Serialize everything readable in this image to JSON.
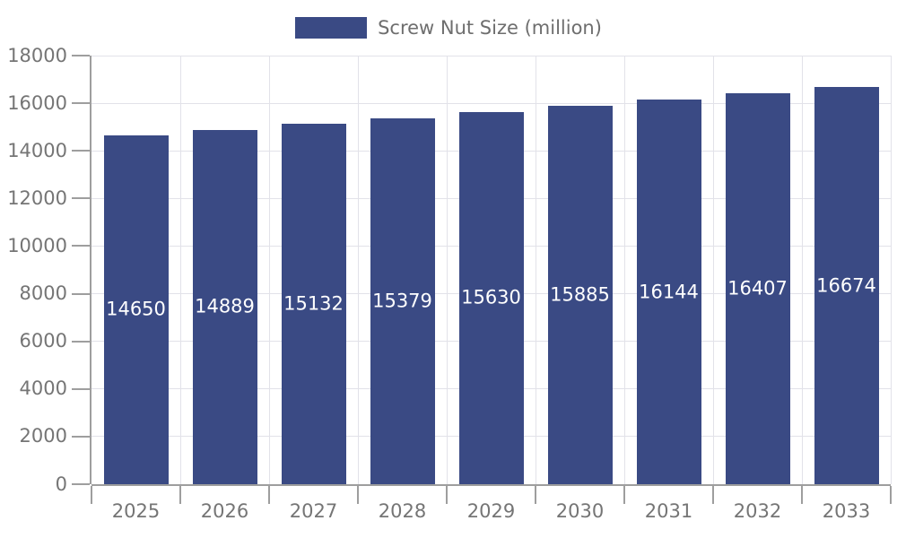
{
  "chart_data": {
    "type": "bar",
    "title": "",
    "legend": "Screw Nut Size (million)",
    "legend_position": "top-center",
    "categories": [
      "2025",
      "2026",
      "2027",
      "2028",
      "2029",
      "2030",
      "2031",
      "2032",
      "2033"
    ],
    "series": [
      {
        "name": "Screw Nut Size (million)",
        "values": [
          14650,
          14889,
          15132,
          15379,
          15630,
          15885,
          16144,
          16407,
          16674
        ]
      }
    ],
    "xlabel": "",
    "ylabel": "",
    "ylim": [
      0,
      18000
    ],
    "ytick_step": 2000,
    "ytick_labels": [
      "0",
      "2000",
      "4000",
      "6000",
      "8000",
      "10000",
      "12000",
      "14000",
      "16000",
      "18000"
    ],
    "grid": true,
    "value_labels": "inside-middle"
  },
  "colors": {
    "bar": "#3A4A84",
    "bar_value_text": "#ffffff",
    "grid": "#E2E2E9",
    "axis": "#9E9E9E",
    "tick": "#9E9E9E",
    "axis_text": "#757575",
    "legend_text": "#6E6E6E",
    "background": "#ffffff"
  }
}
